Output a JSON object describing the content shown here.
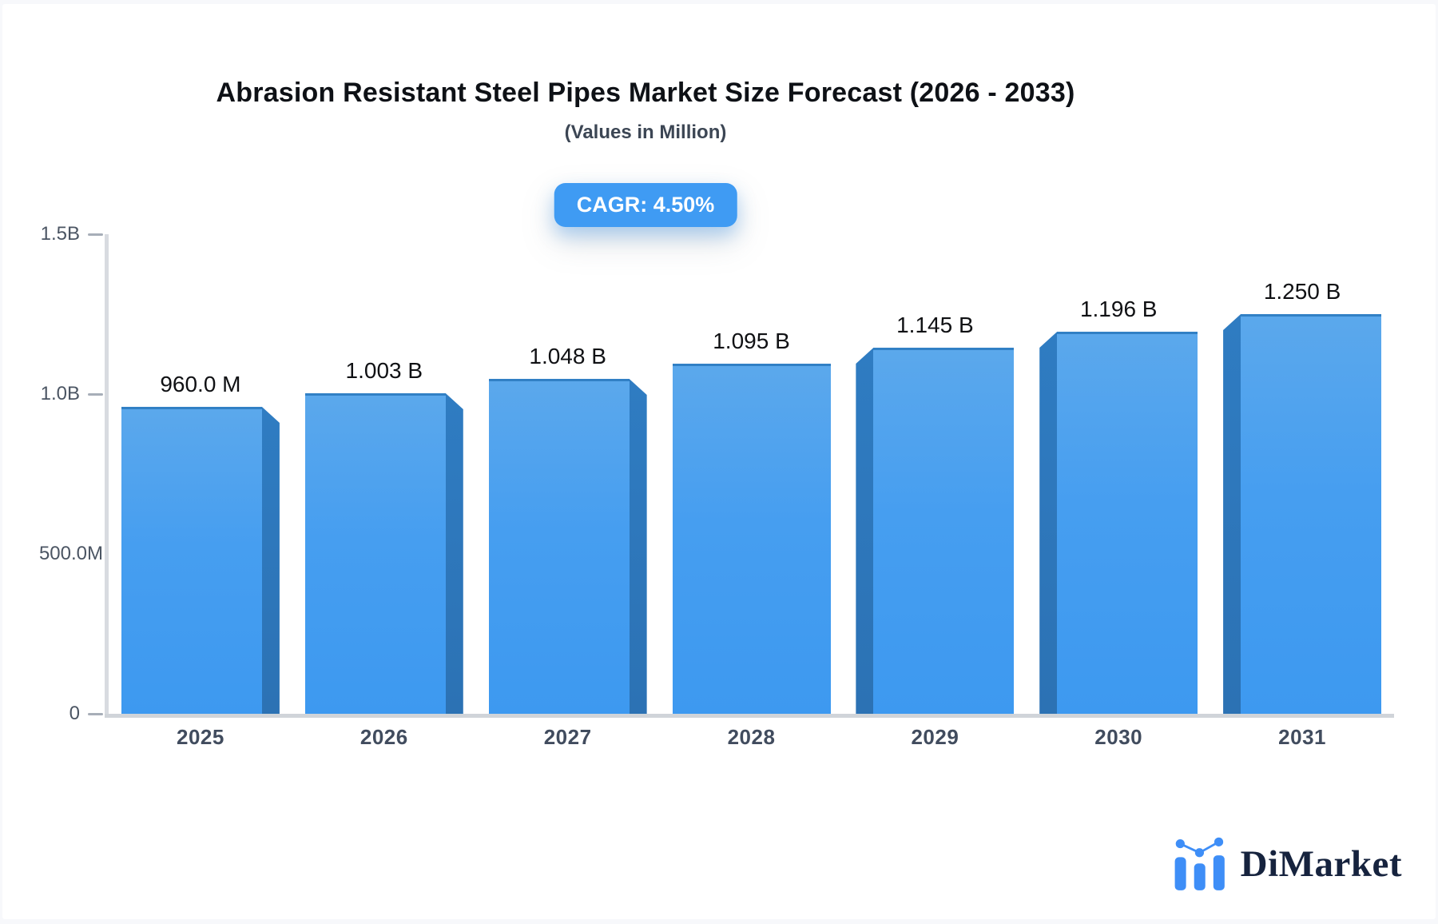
{
  "page": {
    "background": "#f7f8fb",
    "card_background": "#ffffff"
  },
  "chart_data": {
    "type": "bar",
    "title": "Abrasion Resistant Steel Pipes Market Size Forecast (2026 - 2033)",
    "subtitle": "(Values in Million)",
    "annotation": "CAGR: 4.50%",
    "categories": [
      "2025",
      "2026",
      "2027",
      "2028",
      "2029",
      "2030",
      "2031"
    ],
    "values_millions": [
      960,
      1003,
      1048,
      1095,
      1145,
      1196,
      1250
    ],
    "bar_labels": [
      "960.0 M",
      "1.003 B",
      "1.048 B",
      "1.095 B",
      "1.145 B",
      "1.196 B",
      "1.250 B"
    ],
    "xlabel": "",
    "ylabel": "",
    "ylim_millions": [
      0,
      1500
    ],
    "grid": false,
    "legend": "none",
    "y_ticks": [
      {
        "label": "1.5B",
        "value_millions": 1500,
        "dash": true
      },
      {
        "label": "1.0B",
        "value_millions": 1000,
        "dash": true
      },
      {
        "label": "500.0M",
        "value_millions": 500,
        "dash": false
      },
      {
        "label": "0",
        "value_millions": 0,
        "dash": true
      }
    ],
    "bar_style": {
      "face_top": "#5ba8ec",
      "face_bottom": "#3d99f0",
      "face_edge": "#3180c5",
      "side_face": "#2e76ba",
      "effect": "3d bevel; side face on right for bars left of center, on left for bars right of center, flat center bar"
    },
    "annotation_style": {
      "background": "#3f9bf3",
      "text_color": "#ffffff"
    }
  },
  "branding": {
    "logo_text": "DiMarket",
    "logo_icon": "bar-chart-trend-icon",
    "icon_color": "#3e8ef7",
    "text_color": "#16233e"
  }
}
